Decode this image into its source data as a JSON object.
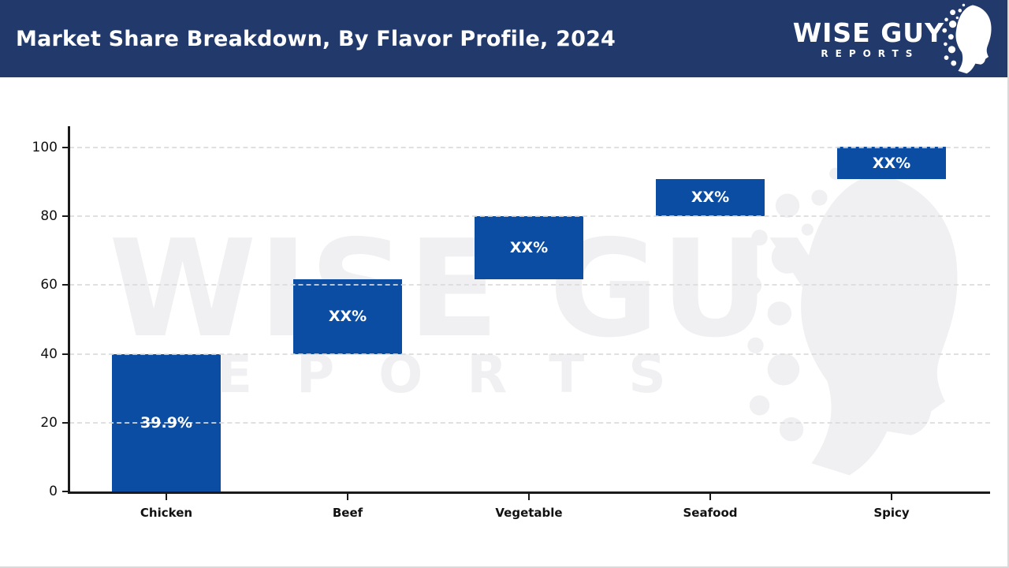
{
  "header": {
    "title": "Market Share Breakdown, By Flavor Profile, 2024",
    "bg_color": "#213A6B",
    "logo": {
      "line1": "WISE GUY",
      "line2": "REPORTS"
    }
  },
  "watermark": {
    "line1": "WISE GUY",
    "line2": "REPORTS"
  },
  "chart_data": {
    "type": "bar",
    "subtype": "waterfall",
    "title": "Market Share Breakdown, By Flavor Profile, 2024",
    "categories": [
      "Chicken",
      "Beef",
      "Vegetable",
      "Seafood",
      "Spicy"
    ],
    "segments": [
      {
        "category": "Chicken",
        "start": 0,
        "end": 39.9,
        "label": "39.9%"
      },
      {
        "category": "Beef",
        "start": 39.9,
        "end": 61.8,
        "label": "XX%"
      },
      {
        "category": "Vegetable",
        "start": 61.8,
        "end": 80.1,
        "label": "XX%"
      },
      {
        "category": "Seafood",
        "start": 80.1,
        "end": 90.8,
        "label": "XX%"
      },
      {
        "category": "Spicy",
        "start": 90.8,
        "end": 100.2,
        "label": "XX%"
      }
    ],
    "yticks": [
      0,
      20,
      40,
      60,
      80,
      100
    ],
    "ylim": [
      0,
      106
    ],
    "xlabel": "",
    "ylabel": "",
    "bar_color": "#0B4DA2",
    "grid": true,
    "gridline_style": "dashed",
    "legend": "none"
  }
}
